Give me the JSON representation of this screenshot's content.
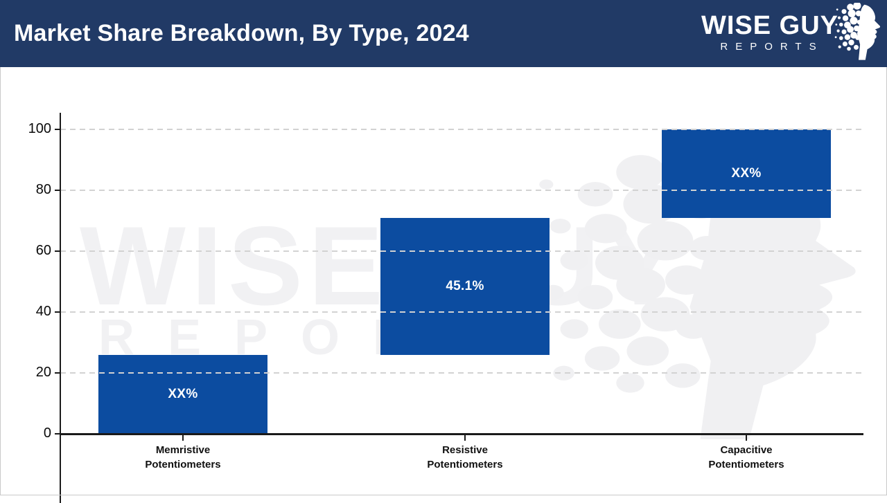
{
  "header": {
    "title": "Market Share Breakdown, By Type, 2024",
    "logo": {
      "line1": "WISE GUY",
      "line2": "REPORTS"
    }
  },
  "watermark": {
    "line1": "WISE GUY",
    "line2": "REPORTS"
  },
  "colors": {
    "header_bg": "#213a66",
    "bar": "#0c4ca0",
    "bar_label": "#ffffff",
    "gridline": "#d2d2d2",
    "axis": "#1a1a1a"
  },
  "chart_data": {
    "type": "bar",
    "subtype": "waterfall-stacked-range",
    "title": "Market Share Breakdown, By Type, 2024",
    "categories": [
      "Memristive Potentiometers",
      "Resistive Potentiometers",
      "Capacitive Potentiometers"
    ],
    "values": [
      25.9,
      45.1,
      29.0
    ],
    "bar_starts": [
      0,
      25.9,
      71.0
    ],
    "bar_labels": [
      "XX%",
      "45.1%",
      "XX%"
    ],
    "xlabel": "",
    "ylabel": "",
    "ylim": [
      0,
      100
    ],
    "yticks": [
      0,
      20,
      40,
      60,
      80,
      100
    ],
    "grid": "dashed horizontal gridlines drawn over bars",
    "legend": "none",
    "bar_color": "#0c4ca0",
    "label_color": "#ffffff"
  }
}
